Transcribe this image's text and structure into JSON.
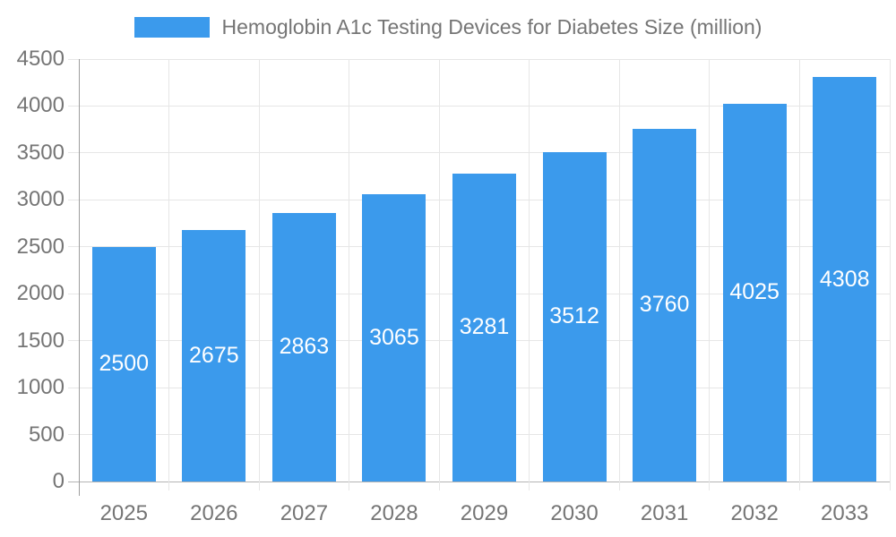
{
  "chart_data": {
    "type": "bar",
    "title": "Hemoglobin A1c Testing Devices for Diabetes Size (million)",
    "categories": [
      "2025",
      "2026",
      "2027",
      "2028",
      "2029",
      "2030",
      "2031",
      "2032",
      "2033"
    ],
    "values": [
      2500,
      2675,
      2863,
      3065,
      3281,
      3512,
      3760,
      4025,
      4308
    ],
    "xlabel": "",
    "ylabel": "",
    "ylim": [
      0,
      4500
    ],
    "yticks": [
      0,
      500,
      1000,
      1500,
      2000,
      2500,
      3000,
      3500,
      4000,
      4500
    ],
    "grid": true,
    "legend_position": "top",
    "bar_labels_inside": true
  },
  "colors": {
    "bar": "#3B9AEC",
    "gridline": "#e6e6e6",
    "baseline": "#b3b3b3",
    "axis_line": "#9e9e9e",
    "tick_text": "#757575",
    "bar_label": "#ffffff",
    "background": "#ffffff"
  }
}
